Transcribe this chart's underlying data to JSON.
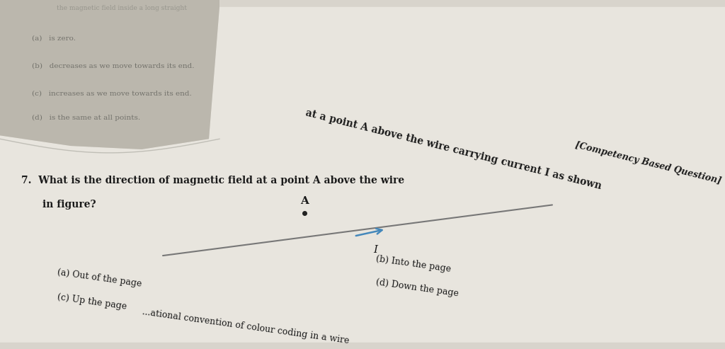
{
  "page_bg": "#d8d4cc",
  "top_section_bg": "#b8b4aa",
  "top_section_bg2": "#c8c4bc",
  "text_color": "#1a1a1a",
  "faded_color": "#666660",
  "wire_color": "#777777",
  "arrow_color": "#4477aa",
  "top_faded_lines": [
    "(a)   is zero.",
    "(b)   decreases as we move towards its end.",
    "(c)   increases as we move towards its end.",
    "(d)   is the same at all points."
  ],
  "question_line1": "7.  What is the direction of magnetic field at a point A above the wire carrying current I as shown",
  "question_line2": "     in figure?",
  "competency_tag": "[Competency Based Question]",
  "options_a": "(a) Out of the page",
  "options_b": "(b) Into the page",
  "options_c": "(c) Up the page",
  "options_d": "(d) Down the page",
  "bottom_text": "...ational convention of colour coding in a wire",
  "font_size_faded": 7.5,
  "font_size_main": 10,
  "font_size_options": 9,
  "font_size_tag": 9
}
